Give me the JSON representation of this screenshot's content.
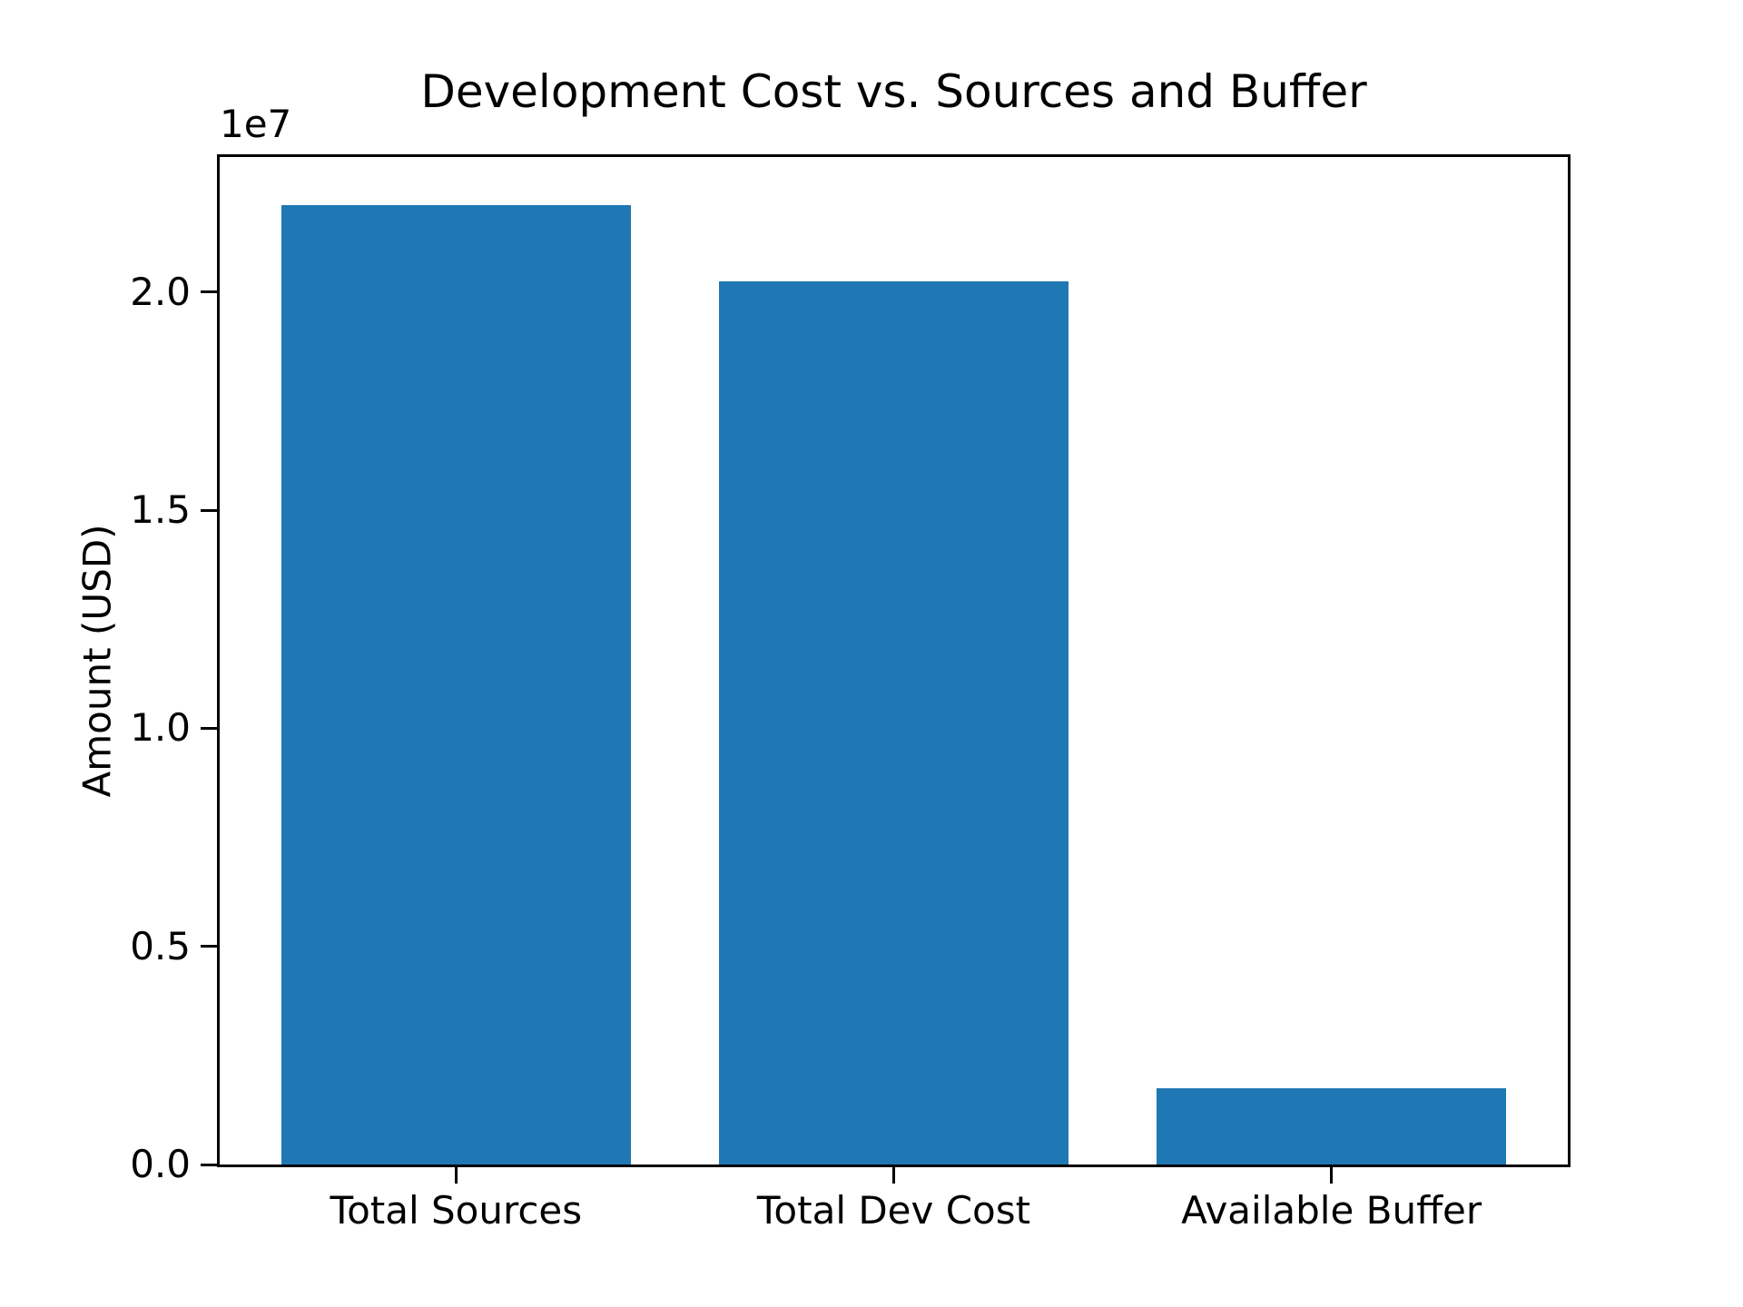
{
  "figure": {
    "background_color": "#ffffff",
    "text_color": "#000000",
    "spine_color": "#000000"
  },
  "chart_data": {
    "type": "bar",
    "title": "Development Cost vs. Sources and Buffer",
    "xlabel": "",
    "ylabel": "Amount (USD)",
    "offset_text": "1e7",
    "categories": [
      "Total Sources",
      "Total Dev Cost",
      "Available Buffer"
    ],
    "values": [
      22000000,
      20250000,
      1750000
    ],
    "bar_color": "#1f77b4",
    "bar_width_fraction": 0.8,
    "ylim": [
      0,
      23100000
    ],
    "yticks": {
      "values": [
        0,
        5000000,
        10000000,
        15000000,
        20000000
      ],
      "labels": [
        "0.0",
        "0.5",
        "1.0",
        "1.5",
        "2.0"
      ]
    },
    "grid": false,
    "legend_position": "none"
  }
}
